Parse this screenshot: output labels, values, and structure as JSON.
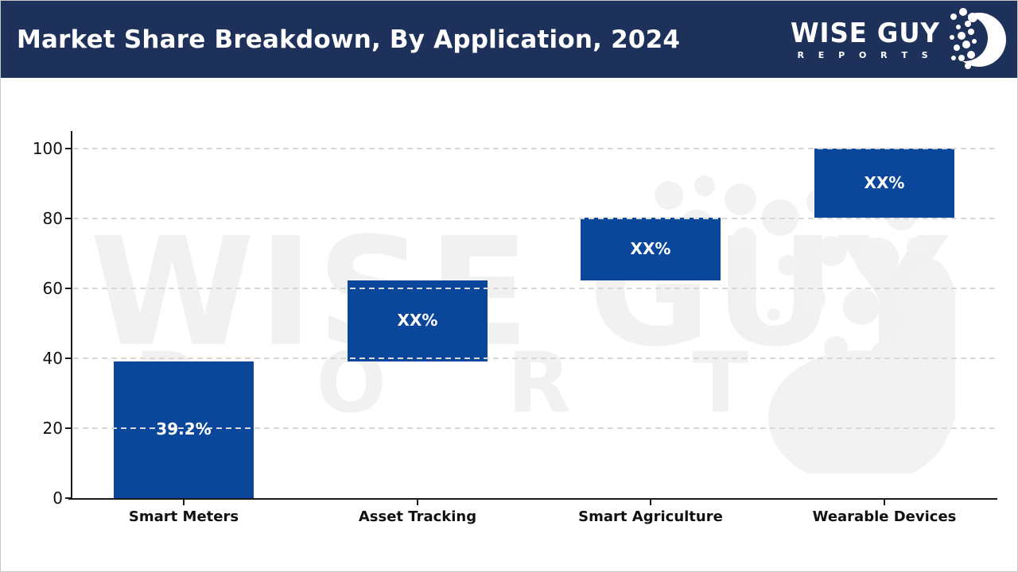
{
  "page": {
    "background": "#ffffff",
    "border_color": "#c9c9c9"
  },
  "header": {
    "title": "Market Share Breakdown, By Application, 2024",
    "background": "#1e315b",
    "text_color": "#ffffff",
    "logo": {
      "wordmark": "WISE GUY",
      "subtext": "R E P O R T S"
    }
  },
  "watermark": {
    "line1": "WISE GUY",
    "line2": "P O R T S"
  },
  "chart_data": {
    "type": "bar",
    "subtype": "floating-waterfall",
    "title": "Market Share Breakdown, By Application, 2024",
    "categories": [
      "Smart Meters",
      "Asset Tracking",
      "Smart Agriculture",
      "Wearable Devices"
    ],
    "segments": [
      {
        "category": "Smart Meters",
        "start": 0,
        "end": 39.2,
        "label": "39.2%"
      },
      {
        "category": "Asset Tracking",
        "start": 39.2,
        "end": 62.3,
        "label": "XX%"
      },
      {
        "category": "Smart Agriculture",
        "start": 62.3,
        "end": 80.2,
        "label": "XX%"
      },
      {
        "category": "Wearable Devices",
        "start": 80.2,
        "end": 100,
        "label": "XX%"
      }
    ],
    "yticks": [
      0,
      20,
      40,
      60,
      80,
      100
    ],
    "ylim": [
      0,
      105
    ],
    "xlabel": "",
    "ylabel": "",
    "legend": "none",
    "grid": {
      "axis": "y",
      "style": "dashed",
      "color": "#d8d8d8",
      "drawn_over_bars": true
    },
    "bar_color": "#0a4699",
    "bar_label_color": "#ffffff",
    "axis_color": "#1a1a1a",
    "tick_label_color": "#111111"
  }
}
